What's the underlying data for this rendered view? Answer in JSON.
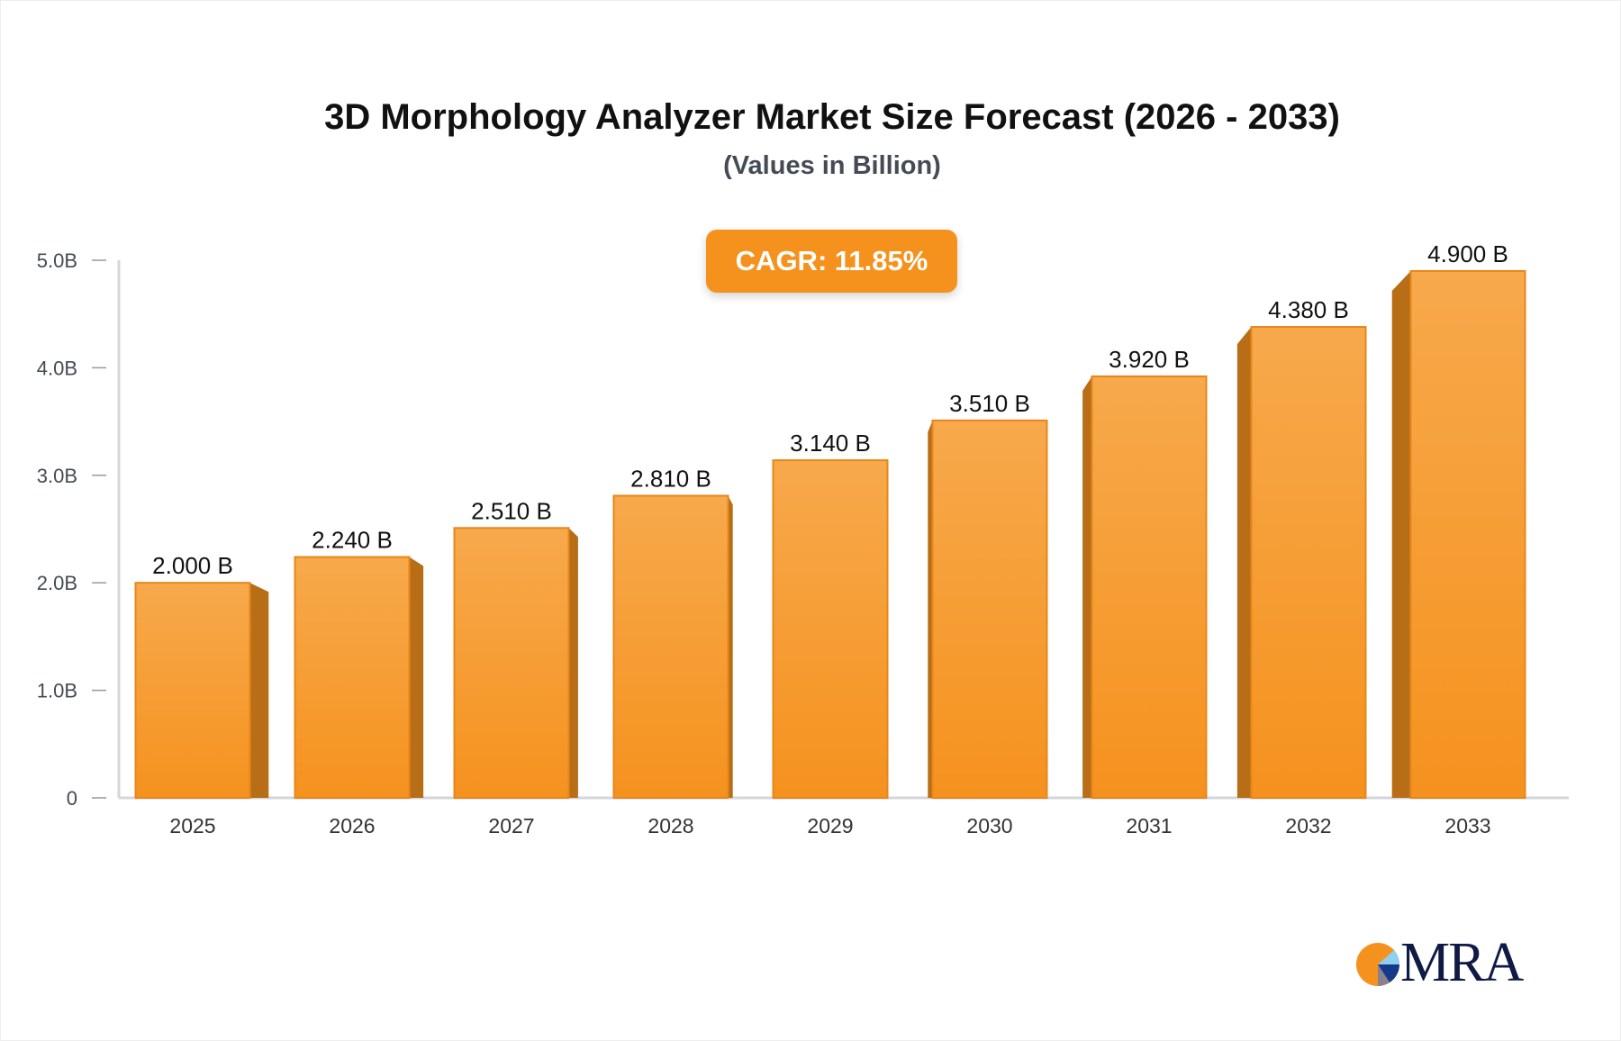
{
  "chart_data": {
    "type": "bar",
    "title": "3D Morphology Analyzer Market Size Forecast (2026 - 2033)",
    "subtitle": "(Values in Billion)",
    "annotation": "CAGR: 11.85%",
    "categories": [
      "2025",
      "2026",
      "2027",
      "2028",
      "2029",
      "2030",
      "2031",
      "2032",
      "2033"
    ],
    "values": [
      2.0,
      2.24,
      2.51,
      2.81,
      3.14,
      3.51,
      3.92,
      4.38,
      4.9
    ],
    "value_labels": [
      "2.000 B",
      "2.240 B",
      "2.510 B",
      "2.810 B",
      "3.140 B",
      "3.510 B",
      "3.920 B",
      "4.380 B",
      "4.900 B"
    ],
    "ylim": [
      0,
      5
    ],
    "yticks": [
      0,
      1,
      2,
      3,
      4,
      5
    ],
    "ytick_labels": [
      "0",
      "1.0B",
      "2.0B",
      "3.0B",
      "4.0B",
      "5.0B"
    ],
    "grid": false,
    "colors": {
      "bar_top": "#f7a94c",
      "bar_bottom": "#f5921e",
      "bar_side": "#b86e17",
      "badge": "#f5921e"
    }
  },
  "logo": {
    "text": "MRA"
  }
}
